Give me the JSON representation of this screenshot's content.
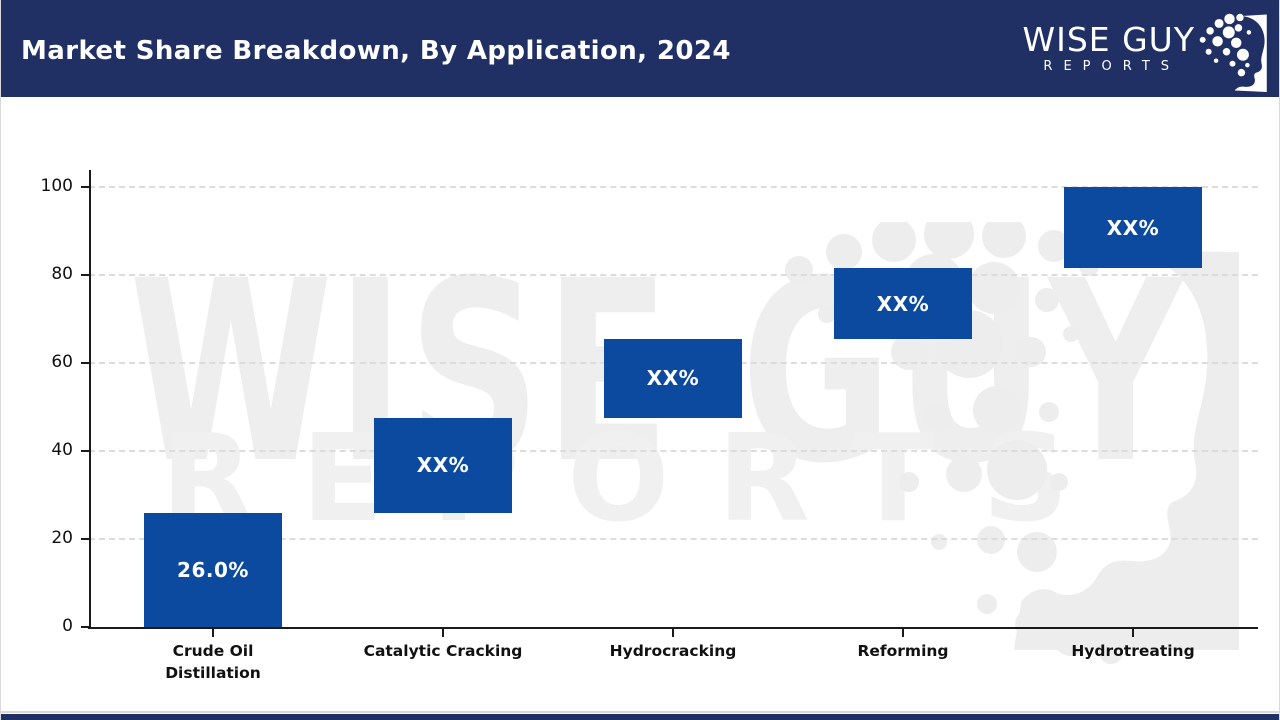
{
  "header": {
    "title": "Market Share Breakdown, By Application, 2024",
    "logo": {
      "primary": "WISE GUY",
      "secondary": "REPORTS"
    }
  },
  "watermark": {
    "primary": "WISE GUY",
    "secondary": "REPORTS"
  },
  "chart_data": {
    "type": "bar",
    "subtype": "floating-waterfall",
    "title": "Market Share Breakdown, By Application, 2024",
    "categories": [
      "Crude Oil Distillation",
      "Catalytic Cracking",
      "Hydrocracking",
      "Reforming",
      "Hydrotreating"
    ],
    "segments": [
      {
        "category": "Crude Oil Distillation",
        "start": 0,
        "end": 26.0,
        "label": "26.0%"
      },
      {
        "category": "Catalytic Cracking",
        "start": 26.0,
        "end": 47.5,
        "label": "XX%"
      },
      {
        "category": "Hydrocracking",
        "start": 47.5,
        "end": 65.5,
        "label": "XX%"
      },
      {
        "category": "Reforming",
        "start": 65.5,
        "end": 81.5,
        "label": "XX%"
      },
      {
        "category": "Hydrotreating",
        "start": 81.5,
        "end": 100.0,
        "label": "XX%"
      }
    ],
    "yticks": [
      0,
      20,
      40,
      60,
      80,
      100
    ],
    "ylim": [
      0,
      104
    ],
    "xlabel": "",
    "ylabel": "",
    "grid": "dashed-horizontal",
    "legend": "none"
  },
  "colors": {
    "header_bg": "#203064",
    "footer_bg": "#203064",
    "bar": "#0b4a9e",
    "bar_label": "#ffffff",
    "gridline": "#dcdcdc",
    "axis": "#1a1a1a",
    "watermark": "#eeeeee"
  }
}
